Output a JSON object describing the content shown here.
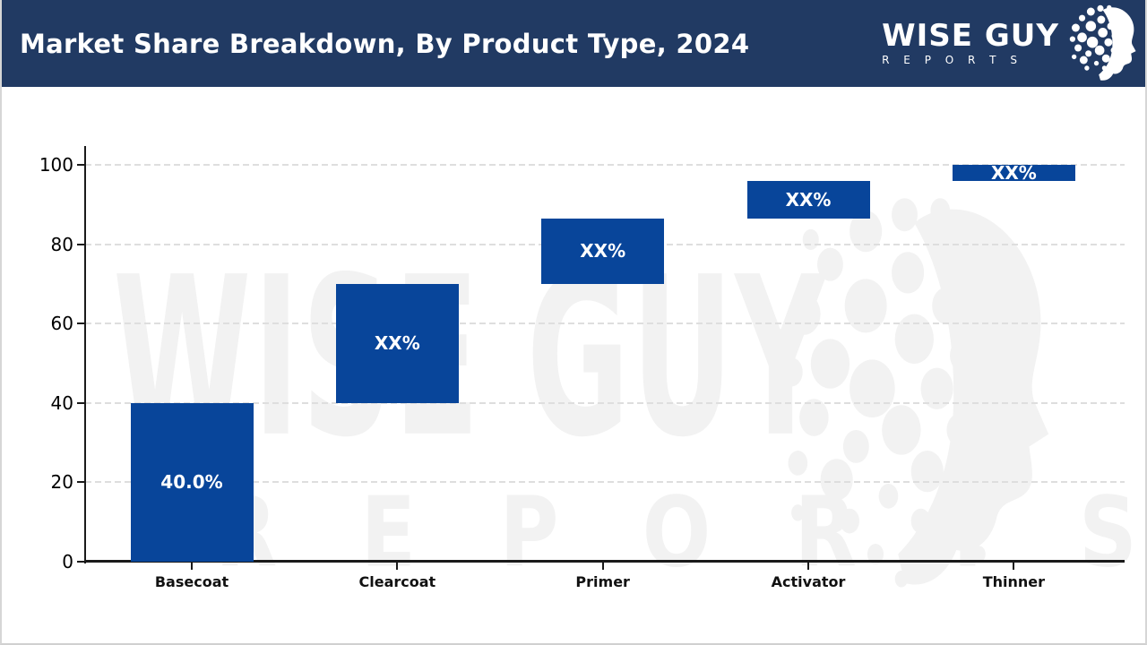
{
  "header": {
    "title": "Market Share Breakdown, By Product Type, 2024",
    "logo": {
      "line1": "WISE GUY",
      "line2": "R E P O R T S"
    }
  },
  "watermark": {
    "line1": "WISE GUY",
    "line2": "R E P O R T S"
  },
  "colors": {
    "header_bg": "#213a63",
    "bar": "#08459a",
    "grid": "#dedede",
    "axis": "#1a1a1a",
    "watermark": "#f2f2f2",
    "bar_label": "#ffffff"
  },
  "chart_data": {
    "type": "bar",
    "variant": "waterfall-stacked-breakdown",
    "title": "Market Share Breakdown, By Product Type, 2024",
    "categories": [
      "Basecoat",
      "Clearcoat",
      "Primer",
      "Activator",
      "Thinner"
    ],
    "segments": [
      {
        "category": "Basecoat",
        "start": 0,
        "end": 40,
        "value": 40,
        "label": "40.0%"
      },
      {
        "category": "Clearcoat",
        "start": 40,
        "end": 70,
        "value": 30,
        "label": "XX%"
      },
      {
        "category": "Primer",
        "start": 70,
        "end": 86.5,
        "value": 16.5,
        "label": "XX%"
      },
      {
        "category": "Activator",
        "start": 86.5,
        "end": 96,
        "value": 9.5,
        "label": "XX%"
      },
      {
        "category": "Thinner",
        "start": 96,
        "end": 100,
        "value": 4,
        "label": "XX%"
      }
    ],
    "yticks": [
      0,
      20,
      40,
      60,
      80,
      100
    ],
    "ylim": [
      0,
      105
    ],
    "xlabel": "",
    "ylabel": "",
    "grid": "horizontal-dashed",
    "legend": "none",
    "bar_color": "#08459a"
  }
}
